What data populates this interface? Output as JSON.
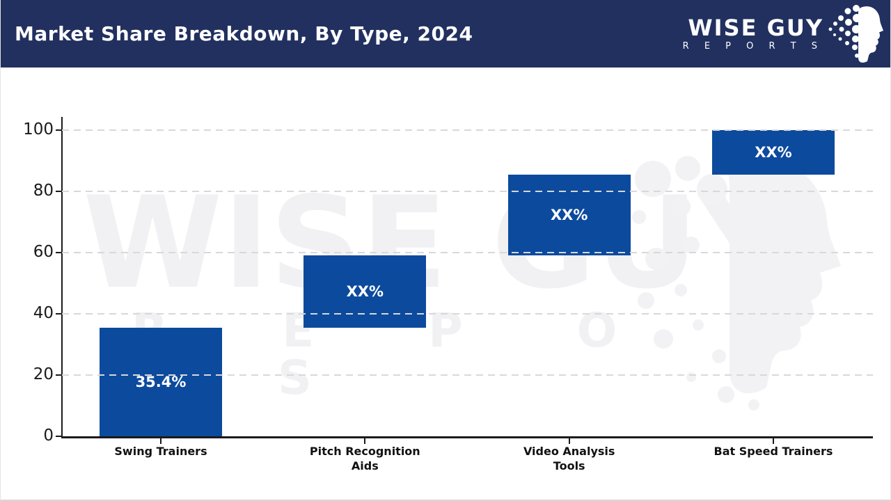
{
  "header": {
    "title": "Market Share Breakdown, By Type, 2024",
    "logo": {
      "line1": "WISE GUY",
      "line2": "R E P O R T S"
    }
  },
  "watermark": {
    "line1": "WISE GUY",
    "line2": "R E P O R T S"
  },
  "colors": {
    "header_bg": "#21305f",
    "bar": "#0c4a9e",
    "bar_label": "#ffffff",
    "grid": "#d8d8d8",
    "axis": "#1a1a1a",
    "wm": "#f1f1f3"
  },
  "chart_data": {
    "type": "bar",
    "subtype": "waterfall",
    "title": "Market Share Breakdown, By Type, 2024",
    "xlabel": "",
    "ylabel": "",
    "ylim": [
      0,
      100
    ],
    "grid": "horizontal-dashed",
    "categories": [
      "Swing Trainers",
      "Pitch Recognition\nAids",
      "Video Analysis\nTools",
      "Bat Speed Trainers"
    ],
    "y_ticks": [
      0,
      20,
      40,
      60,
      80,
      100
    ],
    "segments": [
      {
        "category": "Swing Trainers",
        "start": 0,
        "end": 35.4,
        "label": "35.4%"
      },
      {
        "category": "Pitch Recognition Aids",
        "start": 35.4,
        "end": 59.2,
        "label": "XX%"
      },
      {
        "category": "Video Analysis Tools",
        "start": 59.2,
        "end": 85.4,
        "label": "XX%"
      },
      {
        "category": "Bat Speed Trainers",
        "start": 85.4,
        "end": 100,
        "label": "XX%"
      }
    ]
  }
}
